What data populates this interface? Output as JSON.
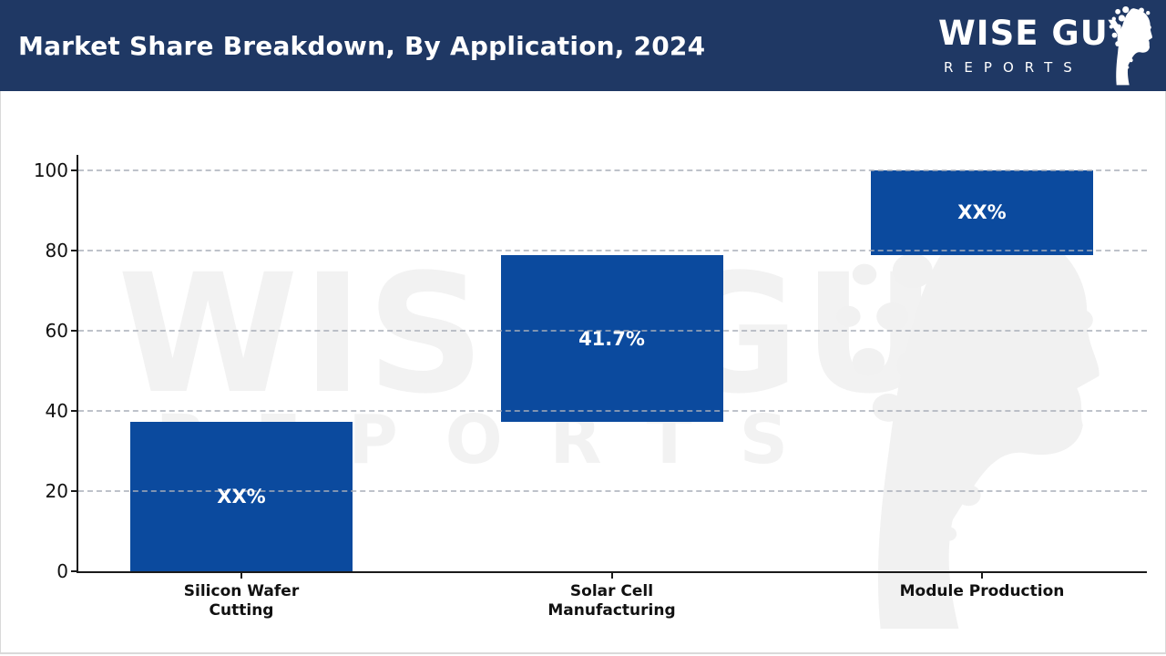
{
  "header": {
    "title": "Market Share Breakdown, By Application, 2024",
    "bg_color": "#1f3864",
    "logo": {
      "line1": "WISE GUY",
      "line2": "REPORTS"
    }
  },
  "watermark": {
    "line1": "WISE GUY",
    "line2": "REPORTS"
  },
  "chart_data": {
    "type": "bar",
    "subtype": "floating-waterfall",
    "title": "Market Share Breakdown, By Application, 2024",
    "categories": [
      [
        "Silicon Wafer",
        "Cutting"
      ],
      [
        "Solar Cell",
        "Manufacturing"
      ],
      [
        "Module Production"
      ]
    ],
    "segments": [
      {
        "category": "Silicon Wafer Cutting",
        "start": 0,
        "end": 37.2,
        "value_label": "XX%"
      },
      {
        "category": "Solar Cell Manufacturing",
        "start": 37.2,
        "end": 78.9,
        "value_label": "41.7%"
      },
      {
        "category": "Module Production",
        "start": 78.9,
        "end": 100,
        "value_label": "XX%"
      }
    ],
    "yticks": [
      0,
      20,
      40,
      60,
      80,
      100
    ],
    "ylim": [
      0,
      104
    ],
    "grid": "horizontal-dashed",
    "legend": "none",
    "bar_color": "#0b4a9e",
    "bar_label_color": "#ffffff",
    "axis_color": "#1a1a1a"
  }
}
